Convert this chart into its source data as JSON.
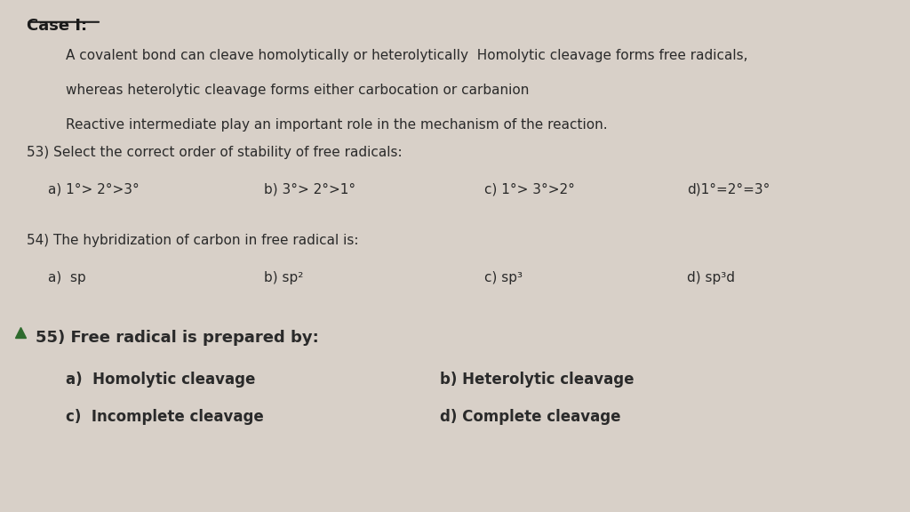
{
  "background_color": "#d8d0c8",
  "title": "Case I:",
  "paragraph": "A covalent bond can cleave homolytically or heterolytically  Homolytic cleavage forms free radicals,\nwhereas heterolytic cleavage forms either carbocation or carbanion\nReactive intermediate play an important role in the mechanism of the reaction.",
  "q53_stem": "53) Select the correct order of stability of free radicals:",
  "q53_a": "a) 1°> 2°>3°",
  "q53_b": "b) 3°> 2°>1°",
  "q53_c": "c) 1°> 3°>2°",
  "q53_d": "d)1°=2°=3°",
  "q54_stem": "54) The hybridization of carbon in free radical is:",
  "q54_a": "a)  sp",
  "q54_b": "b) sp²",
  "q54_c": "c) sp³",
  "q54_d": "d) sp³d",
  "q55_stem": "55) Free radical is prepared by:",
  "q55_a": "a)  Homolytic cleavage",
  "q55_b": "b) Heterolytic cleavage",
  "q55_c": "c)  Incomplete cleavage",
  "q55_d": "d) Complete cleavage",
  "text_color": "#2a2a2a",
  "title_color": "#1a1a1a",
  "bullet_color": "#2d6a2d"
}
